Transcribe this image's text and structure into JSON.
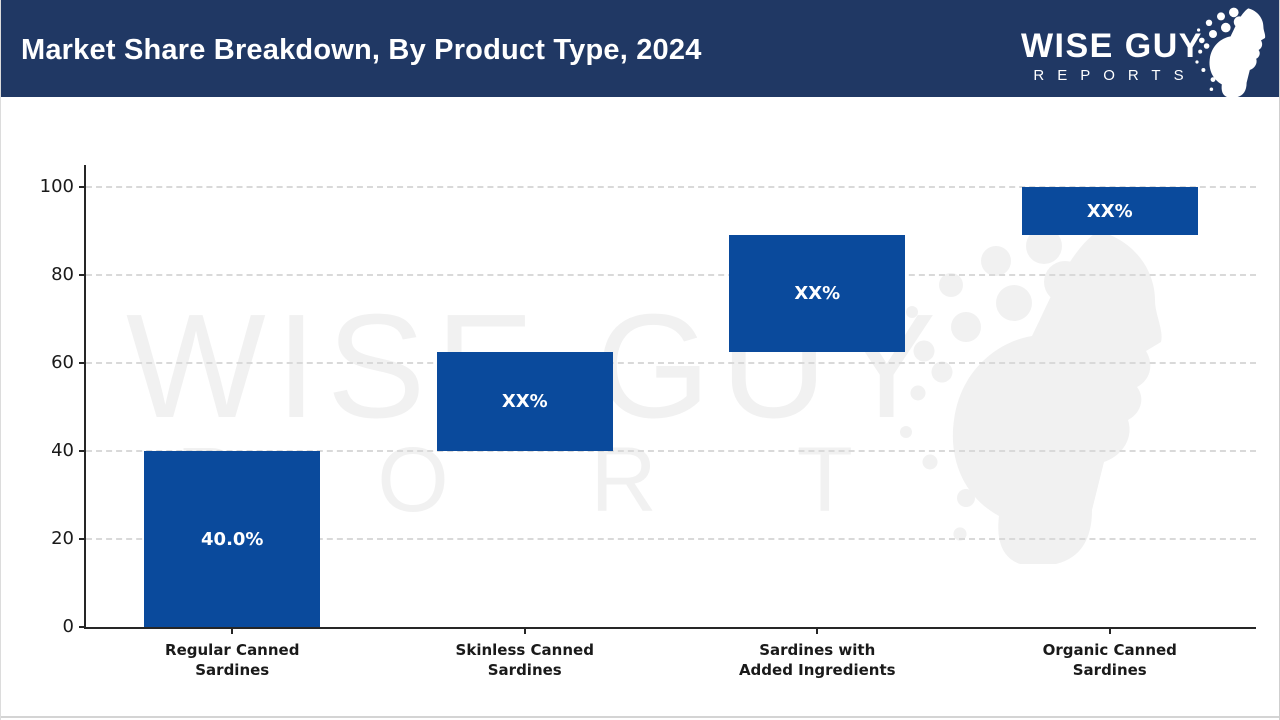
{
  "header": {
    "title": "Market Share Breakdown, By Product Type, 2024",
    "logo_line1": "WISE GUY",
    "logo_line2": "REPORTS",
    "background_color": "#203864"
  },
  "watermark": {
    "line1": "WISE GUY",
    "line2": "P O R T S"
  },
  "chart_data": {
    "type": "bar",
    "variant": "waterfall",
    "title": "Market Share Breakdown, By Product Type, 2024",
    "categories": [
      "Regular Canned Sardines",
      "Skinless Canned Sardines",
      "Sardines with Added Ingredients",
      "Organic Canned Sardines"
    ],
    "categories_wrapped": [
      [
        "Regular Canned",
        "Sardines"
      ],
      [
        "Skinless Canned",
        "Sardines"
      ],
      [
        "Sardines with",
        "Added Ingredients"
      ],
      [
        "Organic Canned",
        "Sardines"
      ]
    ],
    "segments": [
      {
        "start": 0,
        "end": 40,
        "value": 40,
        "label": "40.0%"
      },
      {
        "start": 40,
        "end": 62.5,
        "value": 22.5,
        "label": "XX%"
      },
      {
        "start": 62.5,
        "end": 89,
        "value": 26.5,
        "label": "XX%"
      },
      {
        "start": 89,
        "end": 100,
        "value": 11,
        "label": "XX%"
      }
    ],
    "ylim": [
      0,
      100
    ],
    "yticks": [
      0,
      20,
      40,
      60,
      80,
      100
    ],
    "bar_color": "#0a4a9c",
    "grid": "horizontal-dashed",
    "gridline_color": "#d9d9d9",
    "axis_color": "#262626",
    "legend": "none"
  }
}
